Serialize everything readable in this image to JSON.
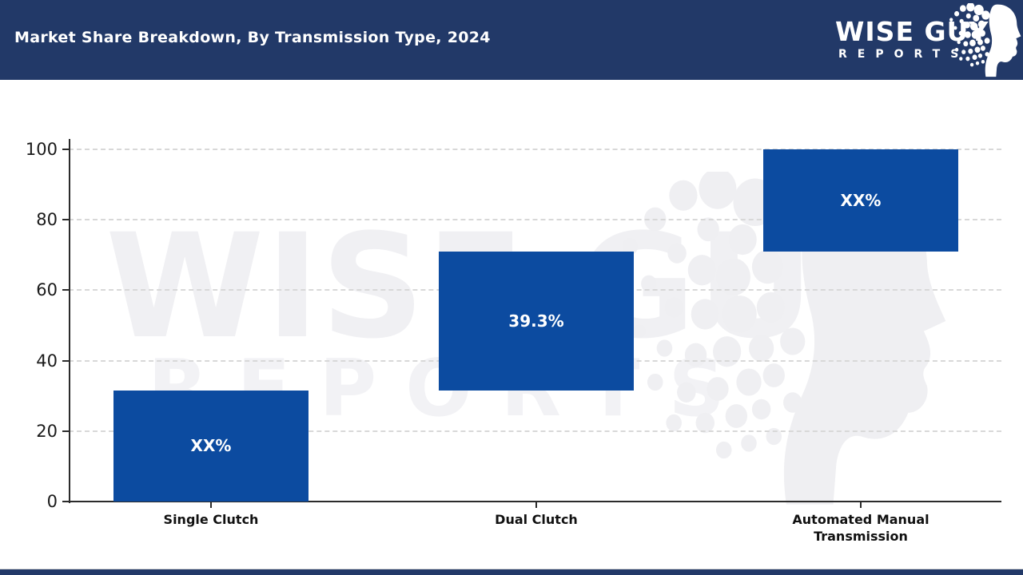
{
  "header": {
    "title": "Market Share Breakdown, By Transmission Type, 2024",
    "logo": {
      "line1": "WISE GUY",
      "line2": "REPORTS"
    }
  },
  "watermark": {
    "line1": "WISE GUY",
    "line2": "REPORTS"
  },
  "chart_data": {
    "type": "bar",
    "subtype": "floating-waterfall",
    "title": "Market Share Breakdown, By Transmission Type, 2024",
    "categories": [
      "Single Clutch",
      "Dual Clutch",
      "Automated Manual Transmission"
    ],
    "segments": [
      {
        "category": "Single Clutch",
        "start": 0,
        "end": 31.6,
        "label": "XX%"
      },
      {
        "category": "Dual Clutch",
        "start": 31.6,
        "end": 70.9,
        "label": "39.3%"
      },
      {
        "category": "Automated Manual Transmission",
        "start": 70.9,
        "end": 100,
        "label": "XX%"
      }
    ],
    "yticks": [
      0,
      20,
      40,
      60,
      80,
      100
    ],
    "ylim": [
      0,
      105
    ],
    "xlabel": "",
    "ylabel": "",
    "grid": "horizontal-dashed",
    "legend": "none",
    "bar_color": "#0c4ba0",
    "bar_label_color": "#ffffff"
  },
  "colors": {
    "header_bg": "#223968",
    "footer_bg": "#223968",
    "bar": "#0c4ba0",
    "watermark": "#f0f0f3",
    "gridline": "#d8d8d8",
    "axis": "#2b2b2b"
  }
}
